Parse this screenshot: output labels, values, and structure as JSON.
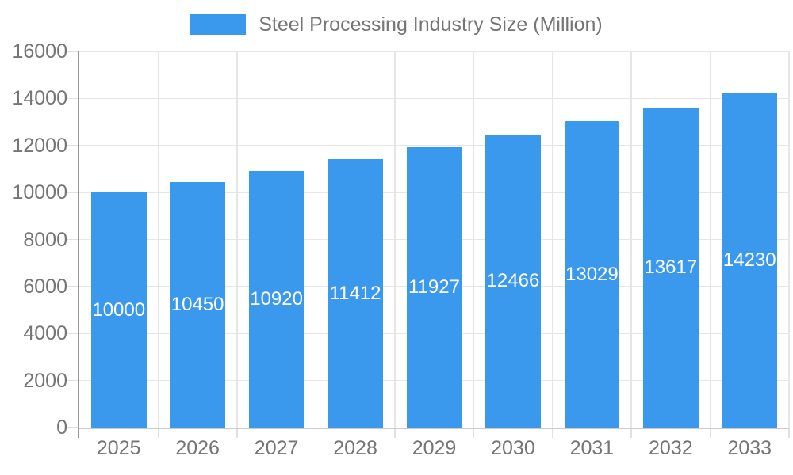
{
  "chart_data": {
    "type": "bar",
    "title": "Steel Processing Industry Size (Million)",
    "series": [
      {
        "name": "Steel Processing Industry Size (Million)",
        "values": [
          10000,
          10450,
          10920,
          11412,
          11927,
          12466,
          13029,
          13617,
          14230
        ]
      }
    ],
    "categories": [
      "2025",
      "2026",
      "2027",
      "2028",
      "2029",
      "2030",
      "2031",
      "2032",
      "2033"
    ],
    "bar_value_labels": [
      "10000",
      "10450",
      "10920",
      "11412",
      "11927",
      "12466",
      "13029",
      "13617",
      "14230"
    ],
    "xlabel": "",
    "ylabel": "",
    "ylim": [
      0,
      16000
    ],
    "ytick_step": 2000,
    "ytick_labels": [
      "0",
      "2000",
      "4000",
      "6000",
      "8000",
      "10000",
      "12000",
      "14000",
      "16000"
    ],
    "grid": true,
    "legend_position": "top-center",
    "colors": {
      "bar": "#3B99ED",
      "bar_label": "#FFFFFF",
      "axis_text": "#757575",
      "grid": "#E6E6E6",
      "tick": "#E0E0E0",
      "axis_line": "#999999",
      "baseline": "#CCCCCC",
      "background": "#FFFFFF"
    }
  }
}
